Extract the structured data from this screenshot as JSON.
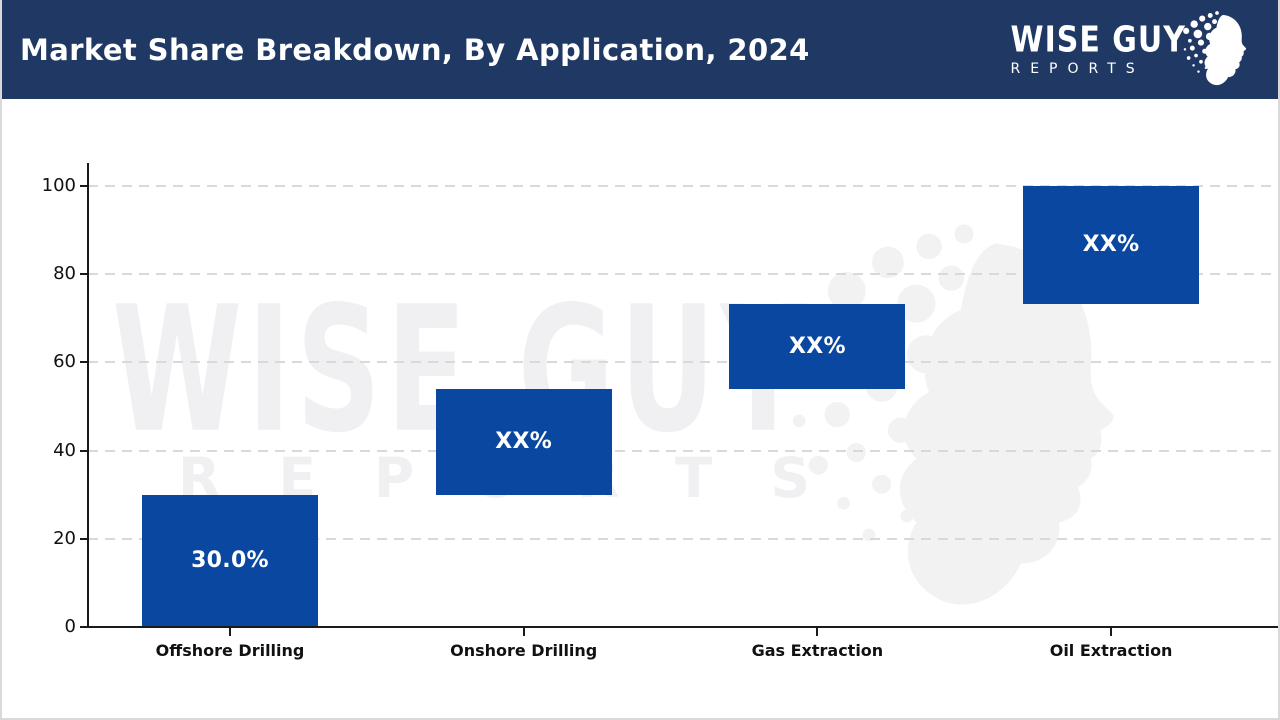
{
  "header": {
    "title": "Market Share Breakdown, By Application, 2024",
    "logo": {
      "line1": "WISE GUY",
      "line2": "REPORTS"
    }
  },
  "watermark": {
    "line1": "WISE GUY",
    "line2": "REPORTS"
  },
  "chart_data": {
    "type": "bar",
    "subtype": "floating-waterfall",
    "title": "Market Share Breakdown, By Application, 2024",
    "categories": [
      "Offshore Drilling",
      "Onshore Drilling",
      "Gas Extraction",
      "Oil Extraction"
    ],
    "bars": [
      {
        "category": "Offshore Drilling",
        "start": 0,
        "end": 30,
        "label": "30.0%"
      },
      {
        "category": "Onshore Drilling",
        "start": 30,
        "end": 54,
        "label": "XX%"
      },
      {
        "category": "Gas Extraction",
        "start": 54,
        "end": 73.3,
        "label": "XX%"
      },
      {
        "category": "Oil Extraction",
        "start": 73.3,
        "end": 100,
        "label": "XX%"
      }
    ],
    "ylabel": "",
    "xlabel": "",
    "ylim": [
      0,
      100
    ],
    "yticks": [
      0,
      20,
      40,
      60,
      80,
      100
    ],
    "grid": "horizontal-dashed",
    "legend": "none"
  },
  "colors": {
    "header_bg": "#1f3864",
    "bar": "#0a47a0",
    "grid": "#d9d9d9",
    "axis": "#1a1a1a",
    "bar_label": "#ffffff",
    "watermark": "#f0f0f2"
  }
}
